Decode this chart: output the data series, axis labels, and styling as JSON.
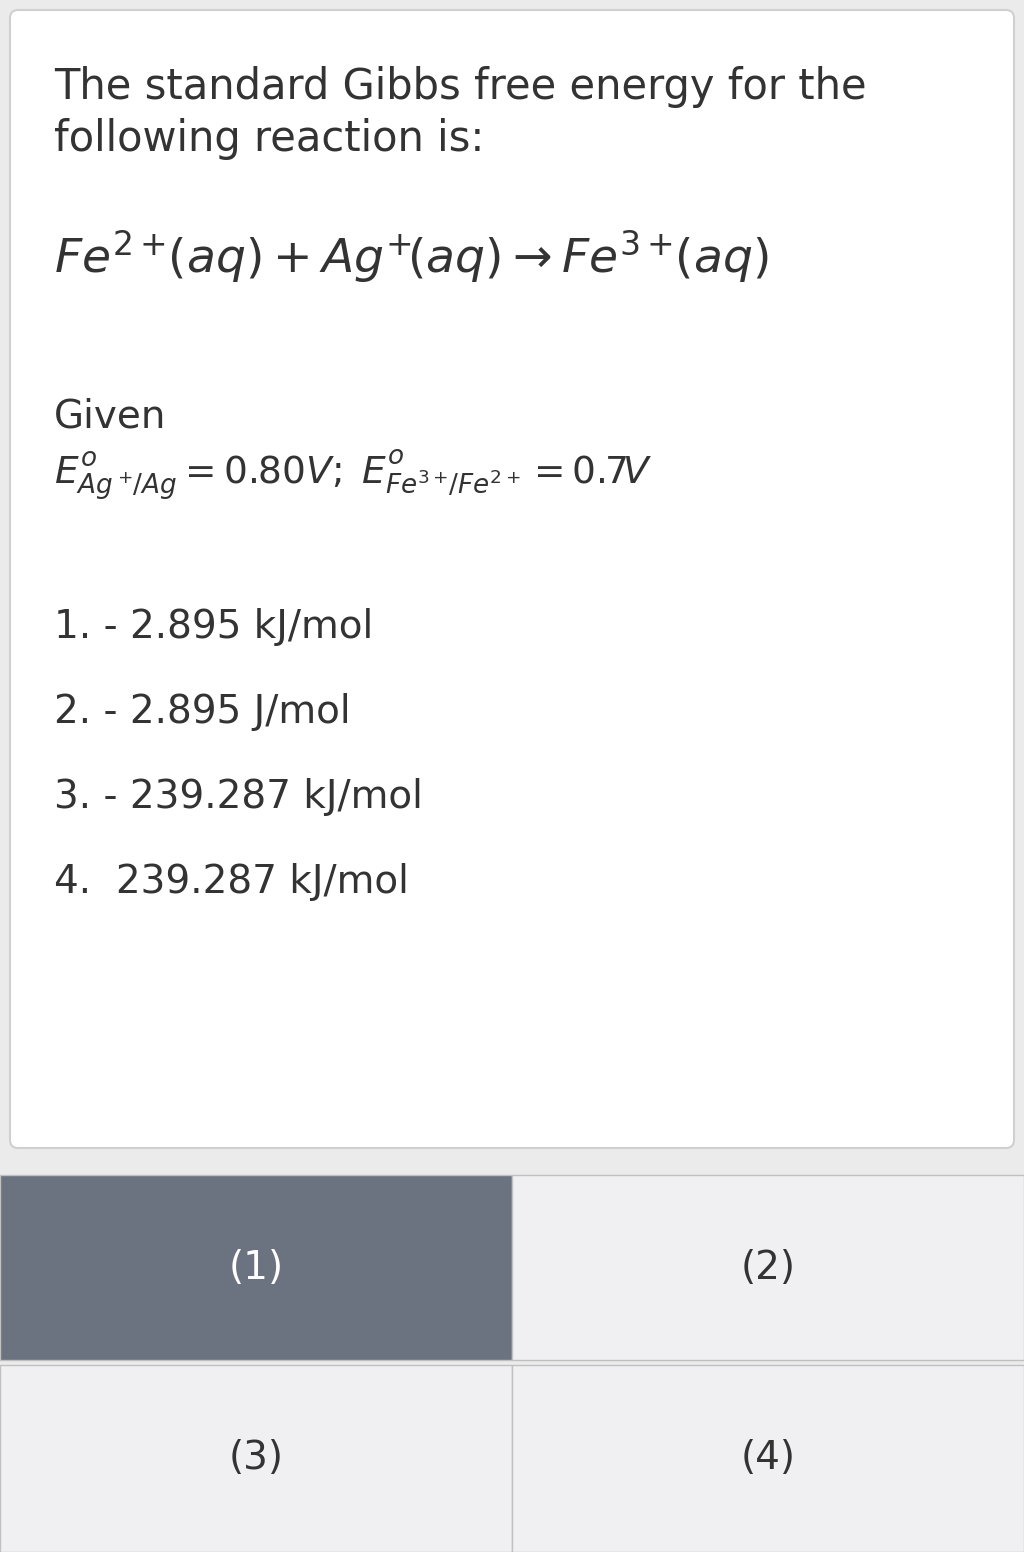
{
  "background_color": "#ebebeb",
  "card_background": "#ffffff",
  "title_line1": "The standard Gibbs free energy for the",
  "title_line2": "following reaction is:",
  "reaction_text": "$\\mathit{Fe}^{2+}\\!(aq) + \\mathit{Ag}^{+}\\!(aq) \\rightarrow \\mathit{Fe}^{3+}\\!(aq)$",
  "given_label": "Given",
  "given_eq": "$E^{o}_{Ag^+\\!/Ag} = 0.80V;\\; E^{o}_{Fe^{3+}\\!/Fe^{2+}} = 0.7V$",
  "options": [
    "1. - 2.895 kJ/mol",
    "2. - 2.895 J/mol",
    "3. - 239.287 kJ/mol",
    "4.  239.287 kJ/mol"
  ],
  "button_labels": [
    "(1)",
    "(2)",
    "(3)",
    "(4)"
  ],
  "button_bg_colors": [
    "#6b7280",
    "#f0f0f2",
    "#f0f0f2",
    "#f0f0f2"
  ],
  "button_text_colors": [
    "#ffffff",
    "#333333",
    "#333333",
    "#333333"
  ],
  "grid_line_color": "#c0c0c0",
  "text_color": "#333333",
  "title_fontsize": 30,
  "reaction_fontsize": 34,
  "given_label_fontsize": 28,
  "given_eq_fontsize": 27,
  "option_fontsize": 28,
  "button_fontsize": 28
}
